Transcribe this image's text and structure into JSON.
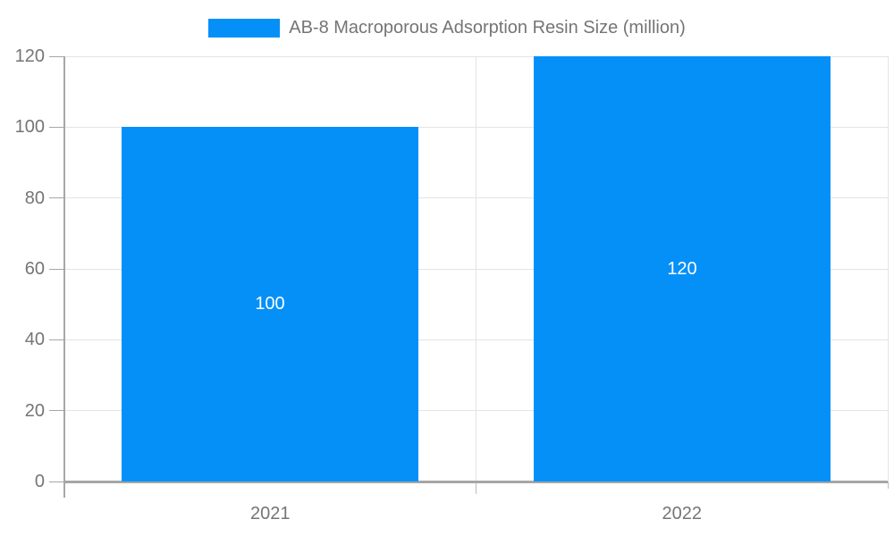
{
  "legend": {
    "label": "AB-8 Macroporous Adsorption Resin Size (million)"
  },
  "chart_data": {
    "type": "bar",
    "title": "AB-8 Macroporous Adsorption Resin Size (million)",
    "categories": [
      "2021",
      "2022"
    ],
    "values": [
      100,
      120
    ],
    "value_labels": [
      "100",
      "120"
    ],
    "series": [
      {
        "name": "AB-8 Macroporous Adsorption Resin Size (million)",
        "values": [
          100,
          120
        ]
      }
    ],
    "xlabel": "",
    "ylabel": "",
    "ylim": [
      0,
      120
    ],
    "yticks": [
      0,
      20,
      40,
      60,
      80,
      100,
      120
    ],
    "grid": true,
    "legend_position": "top",
    "bar_color": "#0590f8",
    "value_label_color": "#ffffff",
    "axis_text_color": "#757575",
    "grid_color": "#e4e4e4",
    "axis_line_color": "#a6a6a6"
  }
}
